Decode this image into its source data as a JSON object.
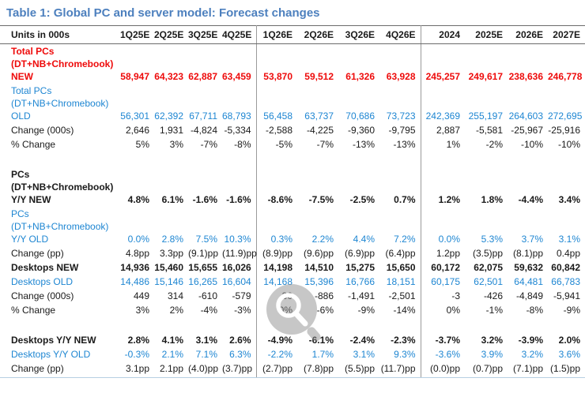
{
  "title": "Table 1: Global PC and server model: Forecast changes",
  "colors": {
    "title_accent": "#4d80be",
    "new_red": "#ee0b0b",
    "old_blue": "#1e86d2",
    "group_separator": "#9a9a9a",
    "header_border": "#6b6b6b",
    "table_bottom_border": "#b7cfe2"
  },
  "watermark": {
    "icon": "magnifier-icon"
  },
  "table": {
    "unit_label": "Units in 000s",
    "columns": [
      "1Q25E",
      "2Q25E",
      "3Q25E",
      "4Q25E",
      "1Q26E",
      "2Q26E",
      "3Q26E",
      "4Q26E",
      "2024",
      "2025E",
      "2026E",
      "2027E"
    ],
    "rows": [
      {
        "label_lines": [
          "Total PCs",
          "(DT+NB+Chromebook)",
          "NEW"
        ],
        "style": "red",
        "values": [
          "58,947",
          "64,323",
          "62,887",
          "63,459",
          "53,870",
          "59,512",
          "61,326",
          "63,928",
          "245,257",
          "249,617",
          "238,636",
          "246,778"
        ]
      },
      {
        "label_lines": [
          "Total PCs",
          "(DT+NB+Chromebook)",
          "OLD"
        ],
        "style": "blue",
        "values": [
          "56,301",
          "62,392",
          "67,711",
          "68,793",
          "56,458",
          "63,737",
          "70,686",
          "73,723",
          "242,369",
          "255,197",
          "264,603",
          "272,695"
        ]
      },
      {
        "label_lines": [
          "Change (000s)"
        ],
        "style": "",
        "values": [
          "2,646",
          "1,931",
          "-4,824",
          "-5,334",
          "-2,588",
          "-4,225",
          "-9,360",
          "-9,795",
          "2,887",
          "-5,581",
          "-25,967",
          "-25,916"
        ]
      },
      {
        "label_lines": [
          "% Change"
        ],
        "style": "",
        "values": [
          "5%",
          "3%",
          "-7%",
          "-8%",
          "-5%",
          "-7%",
          "-13%",
          "-13%",
          "1%",
          "-2%",
          "-10%",
          "-10%"
        ]
      },
      {
        "spacer": true
      },
      {
        "label_lines": [
          "PCs",
          "(DT+NB+Chromebook)",
          "Y/Y NEW"
        ],
        "style": "bold",
        "values": [
          "4.8%",
          "6.1%",
          "-1.6%",
          "-1.6%",
          "-8.6%",
          "-7.5%",
          "-2.5%",
          "0.7%",
          "1.2%",
          "1.8%",
          "-4.4%",
          "3.4%"
        ]
      },
      {
        "label_lines": [
          "PCs",
          "(DT+NB+Chromebook)",
          "Y/Y OLD"
        ],
        "style": "blue",
        "values": [
          "0.0%",
          "2.8%",
          "7.5%",
          "10.3%",
          "0.3%",
          "2.2%",
          "4.4%",
          "7.2%",
          "0.0%",
          "5.3%",
          "3.7%",
          "3.1%"
        ]
      },
      {
        "label_lines": [
          "Change (pp)"
        ],
        "style": "",
        "values": [
          "4.8pp",
          "3.3pp",
          "(9.1)pp",
          "(11.9)pp",
          "(8.9)pp",
          "(9.6)pp",
          "(6.9)pp",
          "(6.4)pp",
          "1.2pp",
          "(3.5)pp",
          "(8.1)pp",
          "0.4pp"
        ]
      },
      {
        "label_lines": [
          "Desktops NEW"
        ],
        "style": "bold",
        "values": [
          "14,936",
          "15,460",
          "15,655",
          "16,026",
          "14,198",
          "14,510",
          "15,275",
          "15,650",
          "60,172",
          "62,075",
          "59,632",
          "60,842"
        ]
      },
      {
        "label_lines": [
          "Desktops OLD"
        ],
        "style": "blue",
        "values": [
          "14,486",
          "15,146",
          "16,265",
          "16,604",
          "14,168",
          "15,396",
          "16,766",
          "18,151",
          "60,175",
          "62,501",
          "64,481",
          "66,783"
        ]
      },
      {
        "label_lines": [
          "Change (000s)"
        ],
        "style": "",
        "values": [
          "449",
          "314",
          "-610",
          "-579",
          "30",
          "-886",
          "-1,491",
          "-2,501",
          "-3",
          "-426",
          "-4,849",
          "-5,941"
        ]
      },
      {
        "label_lines": [
          "% Change"
        ],
        "style": "",
        "values": [
          "3%",
          "2%",
          "-4%",
          "-3%",
          "0%",
          "-6%",
          "-9%",
          "-14%",
          "0%",
          "-1%",
          "-8%",
          "-9%"
        ]
      },
      {
        "spacer": true
      },
      {
        "label_lines": [
          "Desktops Y/Y NEW"
        ],
        "style": "bold",
        "values": [
          "2.8%",
          "4.1%",
          "3.1%",
          "2.6%",
          "-4.9%",
          "-6.1%",
          "-2.4%",
          "-2.3%",
          "-3.7%",
          "3.2%",
          "-3.9%",
          "2.0%"
        ]
      },
      {
        "label_lines": [
          "Desktops Y/Y OLD"
        ],
        "style": "blue",
        "values": [
          "-0.3%",
          "2.1%",
          "7.1%",
          "6.3%",
          "-2.2%",
          "1.7%",
          "3.1%",
          "9.3%",
          "-3.6%",
          "3.9%",
          "3.2%",
          "3.6%"
        ]
      },
      {
        "label_lines": [
          "Change (pp)"
        ],
        "style": "",
        "values": [
          "3.1pp",
          "2.1pp",
          "(4.0)pp",
          "(3.7)pp",
          "(2.7)pp",
          "(7.8)pp",
          "(5.5)pp",
          "(11.7)pp",
          "(0.0)pp",
          "(0.7)pp",
          "(7.1)pp",
          "(1.5)pp"
        ]
      }
    ]
  }
}
